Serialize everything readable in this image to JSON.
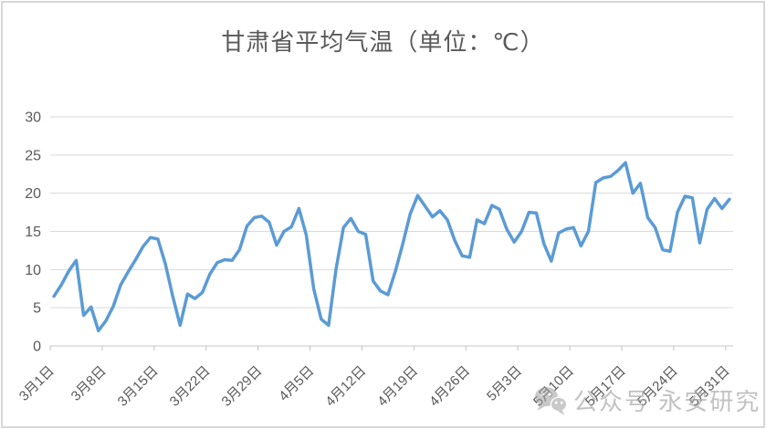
{
  "chart_data": {
    "type": "line",
    "title": "甘肃省平均气温（单位：℃）",
    "x_tick_labels": [
      "3月1日",
      "3月8日",
      "3月15日",
      "3月22日",
      "3月29日",
      "4月5日",
      "4月12日",
      "4月19日",
      "4月26日",
      "5月3日",
      "5月10日",
      "5月17日",
      "5月24日",
      "5月31日"
    ],
    "x_frequency": "daily",
    "days_per_tick": 7,
    "values": [
      6.5,
      8.0,
      9.8,
      11.2,
      4.0,
      5.1,
      2.0,
      3.3,
      5.2,
      8.0,
      9.7,
      11.3,
      13.0,
      14.2,
      14.0,
      10.8,
      6.5,
      2.7,
      6.8,
      6.2,
      7.0,
      9.4,
      10.9,
      11.3,
      11.2,
      12.6,
      15.7,
      16.8,
      17.0,
      16.2,
      13.2,
      15.0,
      15.6,
      18.0,
      14.5,
      7.5,
      3.5,
      2.7,
      10.0,
      15.5,
      16.7,
      15.0,
      14.6,
      8.5,
      7.2,
      6.7,
      9.8,
      13.4,
      17.3,
      19.7,
      18.3,
      16.9,
      17.7,
      16.5,
      13.8,
      11.8,
      11.6,
      16.5,
      16.0,
      18.4,
      17.9,
      15.3,
      13.6,
      15.0,
      17.5,
      17.4,
      13.4,
      11.1,
      14.8,
      15.3,
      15.5,
      13.1,
      15.0,
      21.4,
      22.0,
      22.2,
      23.0,
      24.0,
      20.0,
      21.3,
      16.8,
      15.5,
      12.6,
      12.4,
      17.5,
      19.6,
      19.4,
      13.5,
      17.9,
      19.3,
      18.0,
      19.2
    ],
    "y_ticks": [
      0,
      5,
      10,
      15,
      20,
      25,
      30
    ],
    "y_tick_labels": [
      "0",
      "5",
      "10",
      "15",
      "20",
      "25",
      "30"
    ],
    "ylim": [
      0,
      30
    ],
    "grid": "horizontal",
    "legend": "none",
    "line_color": "#5B9BD5"
  },
  "colors": {
    "title_text": "#595959",
    "axis_text": "#595959",
    "gridline": "#D9D9D9",
    "axis_line": "#D2D2D2",
    "tick": "#BFBFBF",
    "border": "#D7D7D7",
    "watermark_text": "#ADADAD",
    "watermark_icon": "#9E9E9E"
  },
  "watermark": {
    "icon": "wechat-icon",
    "text": "公众号 永安研究"
  }
}
